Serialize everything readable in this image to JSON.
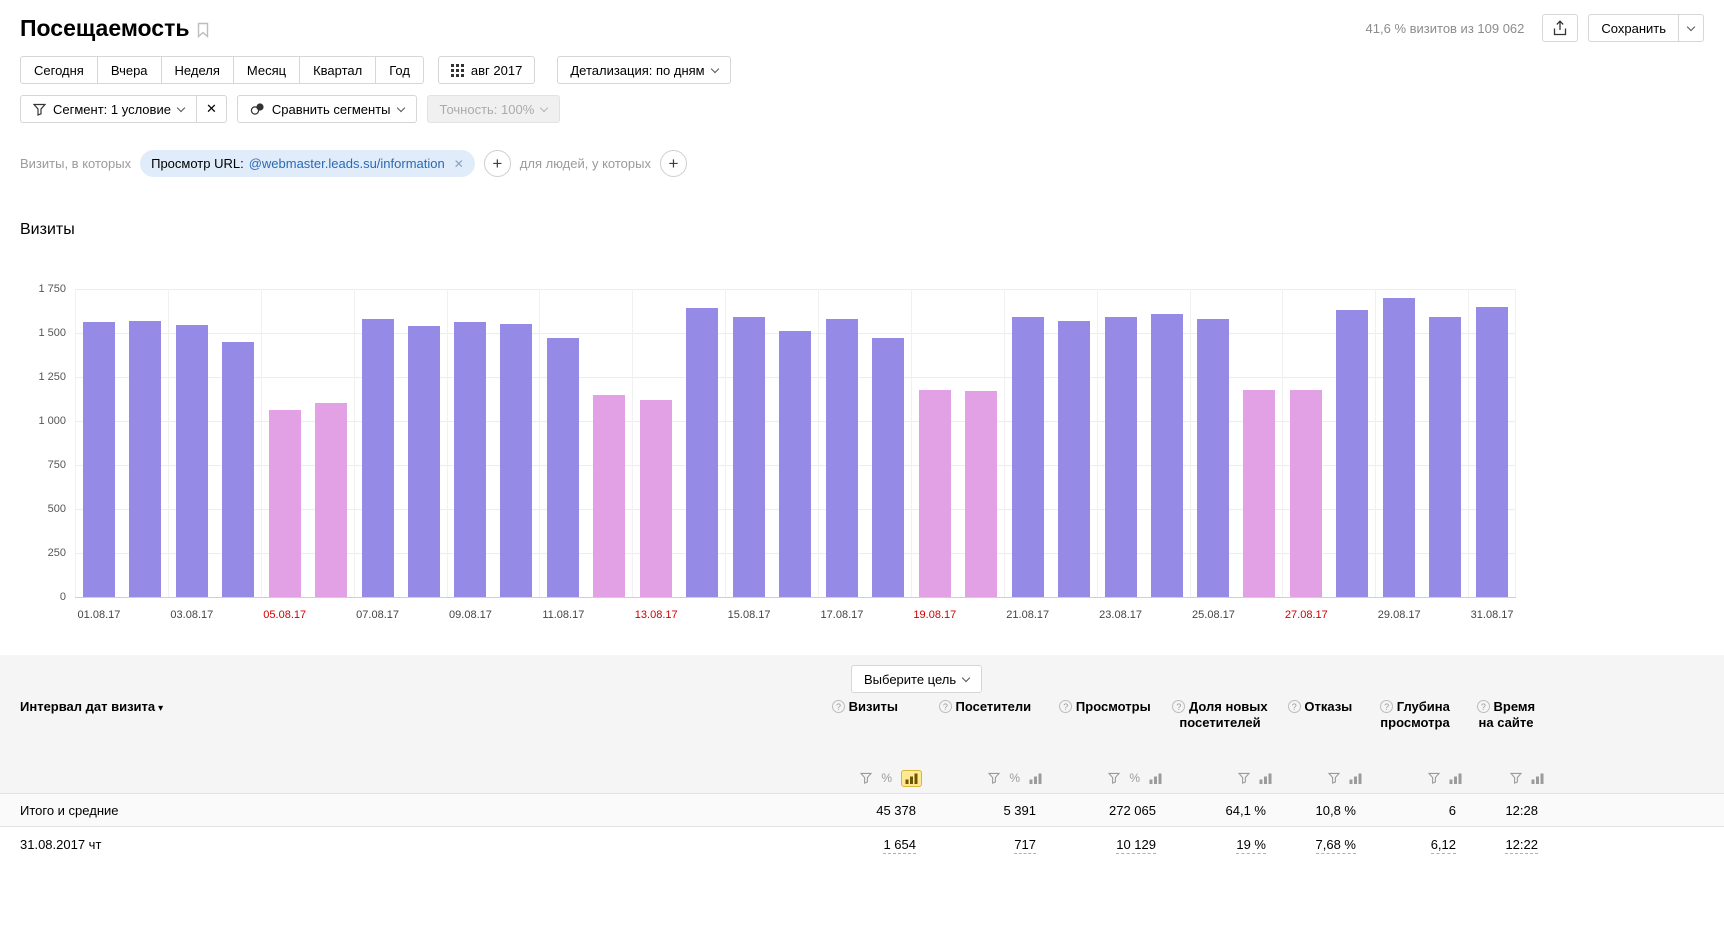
{
  "header": {
    "title": "Посещаемость",
    "visits_share": "41,6 % визитов из 109 062",
    "save_button": "Сохранить"
  },
  "icons": {
    "close": "✕",
    "plus": "+",
    "percent": "%",
    "sort_desc": "▾",
    "help": "?"
  },
  "toolbar": {
    "period_tabs": [
      "Сегодня",
      "Вчера",
      "Неделя",
      "Месяц",
      "Квартал",
      "Год"
    ],
    "calendar_label": "авг 2017",
    "detail_label": "Детализация: по дням",
    "segment_label": "Сегмент: 1 условие",
    "compare_label": "Сравнить сегменты",
    "accuracy_label": "Точность: 100%"
  },
  "segment_bar": {
    "visits_in_which": "Визиты, в которых",
    "chip_label": "Просмотр URL:",
    "chip_value": "@webmaster.leads.su/information",
    "for_people": "для людей, у которых"
  },
  "chart_data": {
    "type": "bar",
    "title": "Визиты",
    "ylabel": "",
    "xlabel": "",
    "ylim": [
      0,
      1750
    ],
    "y_ticks": [
      0,
      250,
      500,
      750,
      1000,
      1250,
      1500,
      1750
    ],
    "y_tick_labels": [
      "0",
      "250",
      "500",
      "750",
      "1 000",
      "1 250",
      "1 500",
      "1 750"
    ],
    "grid": true,
    "colors": {
      "weekday": "#958AE6",
      "weekend": "#E2A1E5",
      "weekend_label": "#D00000"
    },
    "days": [
      {
        "date": "01.08.17",
        "value": 1560,
        "weekend": false
      },
      {
        "date": "02.08.17",
        "value": 1570,
        "weekend": false
      },
      {
        "date": "03.08.17",
        "value": 1545,
        "weekend": false
      },
      {
        "date": "04.08.17",
        "value": 1450,
        "weekend": false
      },
      {
        "date": "05.08.17",
        "value": 1060,
        "weekend": true
      },
      {
        "date": "06.08.17",
        "value": 1100,
        "weekend": true
      },
      {
        "date": "07.08.17",
        "value": 1580,
        "weekend": false
      },
      {
        "date": "08.08.17",
        "value": 1540,
        "weekend": false
      },
      {
        "date": "09.08.17",
        "value": 1560,
        "weekend": false
      },
      {
        "date": "10.08.17",
        "value": 1550,
        "weekend": false
      },
      {
        "date": "11.08.17",
        "value": 1470,
        "weekend": false
      },
      {
        "date": "12.08.17",
        "value": 1150,
        "weekend": true
      },
      {
        "date": "13.08.17",
        "value": 1120,
        "weekend": true
      },
      {
        "date": "14.08.17",
        "value": 1640,
        "weekend": false
      },
      {
        "date": "15.08.17",
        "value": 1590,
        "weekend": false
      },
      {
        "date": "16.08.17",
        "value": 1510,
        "weekend": false
      },
      {
        "date": "17.08.17",
        "value": 1580,
        "weekend": false
      },
      {
        "date": "18.08.17",
        "value": 1470,
        "weekend": false
      },
      {
        "date": "19.08.17",
        "value": 1175,
        "weekend": true
      },
      {
        "date": "20.08.17",
        "value": 1170,
        "weekend": true
      },
      {
        "date": "21.08.17",
        "value": 1590,
        "weekend": false
      },
      {
        "date": "22.08.17",
        "value": 1570,
        "weekend": false
      },
      {
        "date": "23.08.17",
        "value": 1590,
        "weekend": false
      },
      {
        "date": "24.08.17",
        "value": 1610,
        "weekend": false
      },
      {
        "date": "25.08.17",
        "value": 1580,
        "weekend": false
      },
      {
        "date": "26.08.17",
        "value": 1175,
        "weekend": true
      },
      {
        "date": "27.08.17",
        "value": 1175,
        "weekend": true
      },
      {
        "date": "28.08.17",
        "value": 1630,
        "weekend": false
      },
      {
        "date": "29.08.17",
        "value": 1700,
        "weekend": false
      },
      {
        "date": "30.08.17",
        "value": 1590,
        "weekend": false
      },
      {
        "date": "31.08.17",
        "value": 1650,
        "weekend": false
      }
    ]
  },
  "table": {
    "goal_button": "Выберите цель",
    "left_header": "Интервал дат визита",
    "columns": [
      "Визиты",
      "Посетители",
      "Просмотры",
      "Доля новых посетителей",
      "Отказы",
      "Глубина просмотра",
      "Время на сайте"
    ],
    "rows": [
      {
        "label": "Итого и средние",
        "values": [
          "45 378",
          "5 391",
          "272 065",
          "64,1 %",
          "10,8 %",
          "6",
          "12:28"
        ],
        "linked": false
      },
      {
        "label": "31.08.2017 чт",
        "values": [
          "1 654",
          "717",
          "10 129",
          "19 %",
          "7,68 %",
          "6,12",
          "12:22"
        ],
        "linked": true
      }
    ]
  }
}
